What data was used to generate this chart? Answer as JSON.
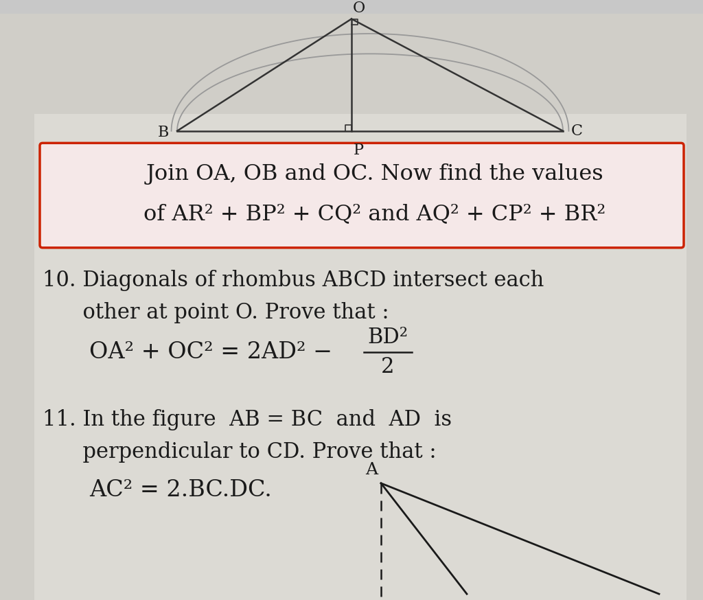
{
  "page_bg": "#c8c8c8",
  "box_bg": "#f5e8e8",
  "box_border": "#cc2200",
  "text_color": "#1a1a1a",
  "figure_label_B": "B",
  "figure_label_C": "C",
  "figure_label_P": "P",
  "figure_label_O": "O",
  "triangle_label_A": "A",
  "box_line1": "Join OA, OB and OC. Now find the values",
  "box_line2": "of AR² + BP² + CQ² and AQ² + CP² + BR²",
  "item10_line1": "10. Diagonals of rhombus ABCD intersect each",
  "item10_line2": "      other at point O. Prove that :",
  "item10_lhs": "OA² + OC² = 2AD² −",
  "frac_num": "BD²",
  "frac_den": "2",
  "item11_line1": "11. In the figure  AB = BC  and  AD  is",
  "item11_line2": "      perpendicular to CD. Prove that :",
  "item11_formula": "AC² = 2.BC.DC."
}
